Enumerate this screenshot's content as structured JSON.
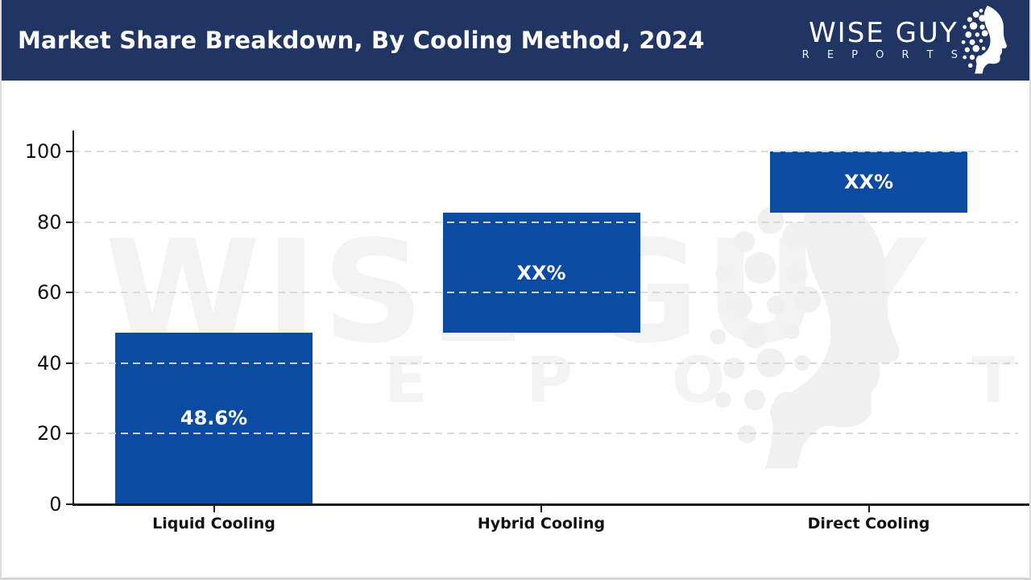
{
  "header": {
    "title": "Market Share Breakdown, By Cooling Method, 2024",
    "logo": {
      "line1": "WISE GUY",
      "line2": "R E P O R T S"
    }
  },
  "watermark": {
    "line1": "WISE GUY",
    "line2": "R E P O R T S"
  },
  "colors": {
    "header_bg": "#213564",
    "bar": "#0b4ba1",
    "bar_label_text": "#ffffff",
    "gridline": "#d9d9d9",
    "axis": "#1a1a1a",
    "watermark": "#f3f3f3",
    "title_text": "#ffffff"
  },
  "chart_data": {
    "type": "bar",
    "subtype": "waterfall",
    "title": "Market Share Breakdown, By Cooling Method, 2024",
    "categories": [
      "Liquid Cooling",
      "Hybrid Cooling",
      "Direct Cooling"
    ],
    "segments": [
      {
        "category": "Liquid Cooling",
        "start": 0,
        "end": 48.6,
        "label": "48.6%"
      },
      {
        "category": "Hybrid Cooling",
        "start": 48.6,
        "end": 82.6,
        "label": "XX%"
      },
      {
        "category": "Direct Cooling",
        "start": 82.6,
        "end": 100,
        "label": "XX%"
      }
    ],
    "yticks": [
      0,
      20,
      40,
      60,
      80,
      100
    ],
    "ylim": [
      0,
      105
    ],
    "xlabel": "",
    "ylabel": "",
    "grid": "horizontal-dashed",
    "legend": "none",
    "bar_color": "#0b4ba1"
  }
}
